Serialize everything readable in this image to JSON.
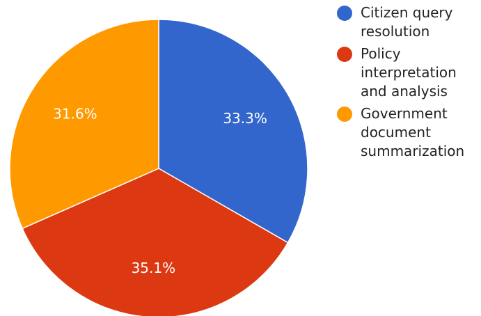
{
  "chart_data": {
    "type": "pie",
    "title": "",
    "slices": [
      {
        "label": "Citizen query resolution",
        "value": 33.3,
        "value_label": "33.3%",
        "color": "#3366cc"
      },
      {
        "label": "Policy interpretation and analysis",
        "value": 35.1,
        "value_label": "35.1%",
        "color": "#dc3912"
      },
      {
        "label": "Government document summarization",
        "value": 31.6,
        "value_label": "31.6%",
        "color": "#ff9900"
      }
    ],
    "legend_position": "right"
  }
}
